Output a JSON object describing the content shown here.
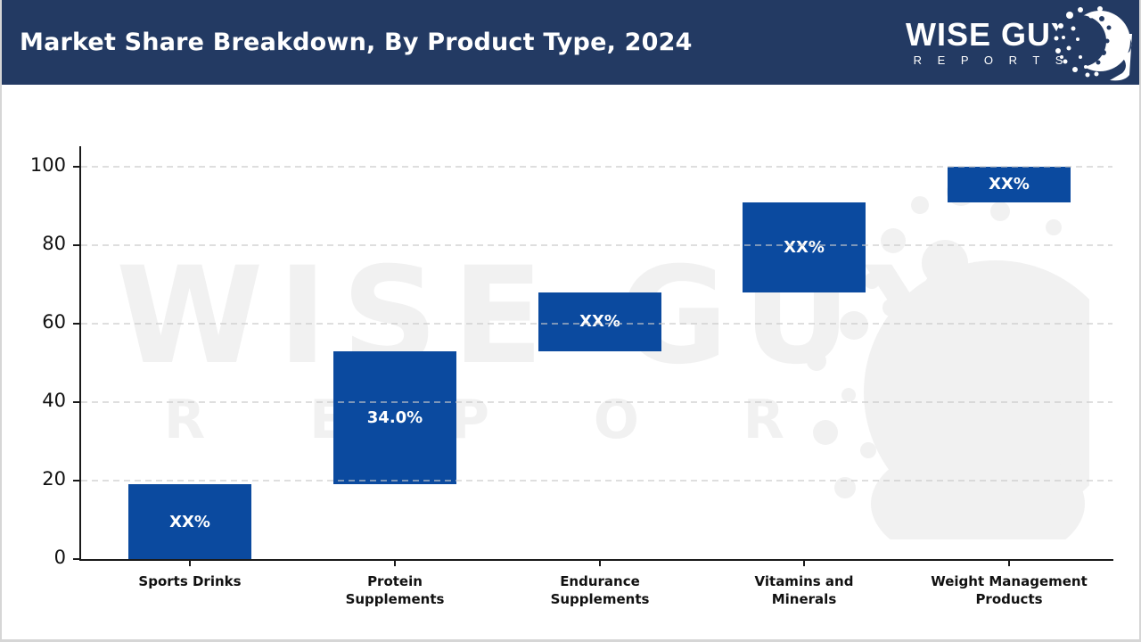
{
  "header": {
    "title": "Market Share Breakdown, By Product Type, 2024",
    "logo": {
      "line1": "WISE GUY",
      "line2": "R E P O R T S"
    }
  },
  "watermark": {
    "line1": "WISE GUY",
    "line2": "R E P O R T S"
  },
  "chart_data": {
    "type": "bar",
    "variant": "waterfall",
    "title": "Market Share Breakdown, By Product Type, 2024",
    "xlabel": "",
    "ylabel": "",
    "categories": [
      "Sports Drinks",
      "Protein Supplements",
      "Endurance Supplements",
      "Vitamins and Minerals",
      "Weight Management Products"
    ],
    "category_lines": [
      [
        "Sports Drinks"
      ],
      [
        "Protein",
        "Supplements"
      ],
      [
        "Endurance",
        "Supplements"
      ],
      [
        "Vitamins and",
        "Minerals"
      ],
      [
        "Weight Management",
        "Products"
      ]
    ],
    "series": [
      {
        "name": "Market Share (%)",
        "segment_start": [
          0,
          19,
          53,
          68,
          91
        ],
        "segment_end": [
          19,
          53,
          68,
          91,
          100
        ],
        "segment_size": [
          19,
          34,
          15,
          23,
          9
        ]
      }
    ],
    "displayed_labels": [
      "XX%",
      "34.0%",
      "XX%",
      "XX%",
      "XX%"
    ],
    "yticks": [
      0,
      20,
      40,
      60,
      80,
      100
    ],
    "ylim": [
      0,
      105
    ],
    "grid": {
      "horizontal": true,
      "style": "dashed",
      "drawn_over_bars": true
    },
    "legend": "none"
  },
  "colors": {
    "header_bg": "#233a63",
    "bar": "#0b4a9f",
    "bar_label": "#ffffff",
    "axis": "#1a1a1a",
    "tick_label": "#111111",
    "grid_line": "#c9c9c9",
    "watermark": "#f1f1f1",
    "page_border": "#d6d6d6",
    "background": "#ffffff"
  }
}
